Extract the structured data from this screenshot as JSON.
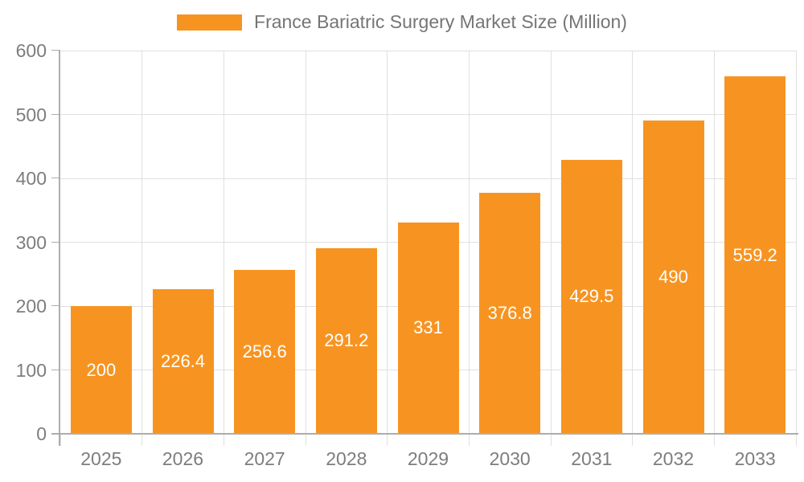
{
  "legend": {
    "label": "France Bariatric Surgery Market Size (Million)"
  },
  "colors": {
    "bar": "#F79421",
    "bar_label_text": "#ffffff",
    "axis_text": "#7d7d7d",
    "legend_text": "#757575",
    "grid": "#e0e0e0",
    "axis_line": "#adadad"
  },
  "chart_data": {
    "type": "bar",
    "title": "France Bariatric Surgery Market Size (Million)",
    "categories": [
      "2025",
      "2026",
      "2027",
      "2028",
      "2029",
      "2030",
      "2031",
      "2032",
      "2033"
    ],
    "values": [
      200,
      226.4,
      256.6,
      291.2,
      331,
      376.8,
      429.5,
      490,
      559.2
    ],
    "value_labels": [
      "200",
      "226.4",
      "256.6",
      "291.2",
      "331",
      "376.8",
      "429.5",
      "490",
      "559.2"
    ],
    "xlabel": "",
    "ylabel": "",
    "ylim": [
      0,
      600
    ],
    "yticks": [
      0,
      100,
      200,
      300,
      400,
      500,
      600
    ],
    "grid": true,
    "legend_position": "top",
    "value_label_position": "inside-center"
  }
}
